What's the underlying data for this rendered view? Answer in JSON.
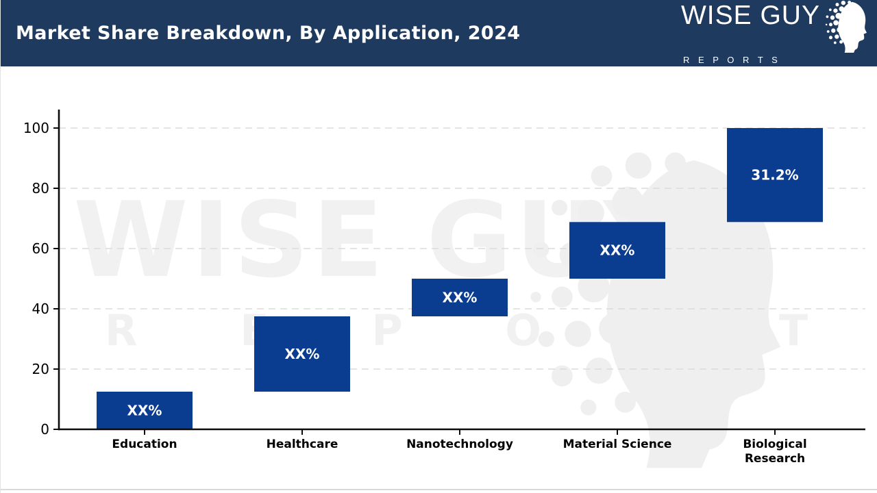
{
  "header": {
    "title": "Market Share Breakdown, By Application, 2024",
    "logo": {
      "wordmark": "WISE GUY",
      "reports": "R E P O R T S"
    }
  },
  "watermark": {
    "line1": "WISE GUY",
    "line2": "R E P O R T S"
  },
  "colors": {
    "header_bg": "#1F3A5F",
    "bar": "#0A3D8F",
    "bar_label": "#FFFFFF",
    "grid": "#DCDCDC",
    "axis": "#000000",
    "watermark": "#F1F1F1"
  },
  "chart_data": {
    "type": "bar",
    "variant": "waterfall",
    "title": "Market Share Breakdown, By Application, 2024",
    "categories": [
      "Education",
      "Healthcare",
      "Nanotechnology",
      "Material Science",
      "Biological Research"
    ],
    "series": [
      {
        "category": "Education",
        "start": 0,
        "end": 12.5,
        "value": 12.5,
        "label": "XX%"
      },
      {
        "category": "Healthcare",
        "start": 12.5,
        "end": 37.5,
        "value": 25.0,
        "label": "XX%"
      },
      {
        "category": "Nanotechnology",
        "start": 37.5,
        "end": 50.0,
        "value": 12.5,
        "label": "XX%"
      },
      {
        "category": "Material Science",
        "start": 50.0,
        "end": 68.8,
        "value": 18.8,
        "label": "XX%"
      },
      {
        "category": "Biological Research",
        "start": 68.8,
        "end": 100,
        "value": 31.2,
        "label": "31.2%"
      }
    ],
    "xlabel": "",
    "ylabel": "",
    "ylim": [
      0,
      100
    ],
    "yticks": [
      0,
      20,
      40,
      60,
      80,
      100
    ],
    "grid": "horizontal-dashed",
    "legend": null
  }
}
